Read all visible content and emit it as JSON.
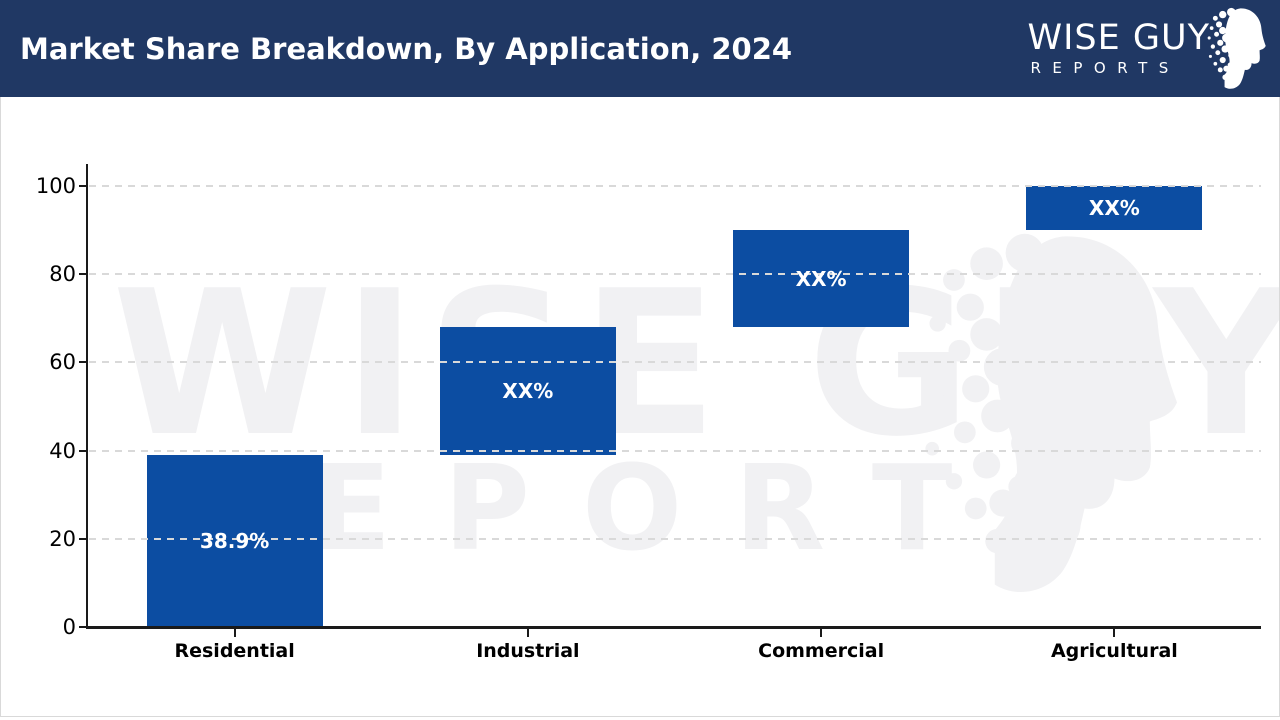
{
  "header": {
    "title": "Market Share Breakdown, By Application, 2024",
    "brand": {
      "line1": "WISE GUY",
      "line2": "REPORTS"
    }
  },
  "watermark": {
    "line1": "WISE GUY",
    "line2": "REPORTS"
  },
  "colors": {
    "header_bg": "#203864",
    "bar": "#0c4da2",
    "grid": "#d9d9d9",
    "axis": "#1a1a1a",
    "watermark": "#f1f1f3",
    "bar_label": "#ffffff"
  },
  "chart_data": {
    "type": "bar",
    "variant": "waterfall-breakdown",
    "title": "Market Share Breakdown, By Application, 2024",
    "categories": [
      "Residential",
      "Industrial",
      "Commercial",
      "Agricultural"
    ],
    "segments": [
      {
        "category": "Residential",
        "start": 0,
        "end": 38.9,
        "size": 38.9,
        "label": "38.9%"
      },
      {
        "category": "Industrial",
        "start": 38.9,
        "end": 68.0,
        "size": 29.1,
        "label": "XX%"
      },
      {
        "category": "Commercial",
        "start": 68.0,
        "end": 90.0,
        "size": 22.0,
        "label": "XX%"
      },
      {
        "category": "Agricultural",
        "start": 90.0,
        "end": 100.0,
        "size": 10.0,
        "label": "XX%"
      }
    ],
    "xlabel": "",
    "ylabel": "",
    "yticks": [
      0,
      20,
      40,
      60,
      80,
      100
    ],
    "ylim": [
      0,
      105
    ],
    "grid": "horizontal-dashed",
    "gridlines_above_bars": true,
    "legend": "none"
  }
}
